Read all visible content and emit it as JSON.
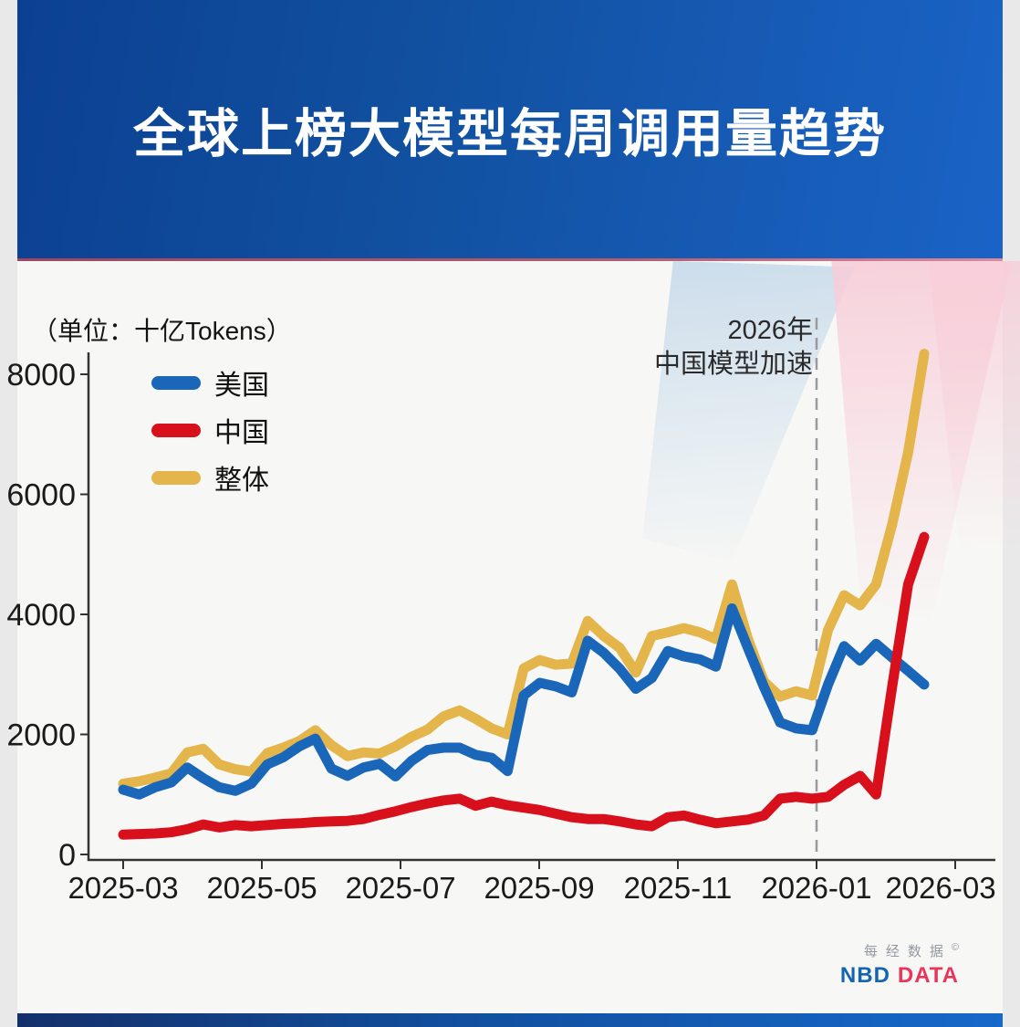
{
  "header": {
    "title": "全球上榜大模型每周调用量趋势"
  },
  "chart_data": {
    "type": "line",
    "title": "全球上榜大模型每周调用量趋势",
    "unit_label": "（单位：十亿Tokens）",
    "x_tick_labels": [
      "2025-03",
      "2025-05",
      "2025-07",
      "2025-09",
      "2025-11",
      "2026-01",
      "2026-03"
    ],
    "yticks": [
      0,
      2000,
      4000,
      6000,
      8000
    ],
    "ylim": [
      0,
      8500
    ],
    "grid": false,
    "legend_position": "top-left",
    "x_unit": "week",
    "points_per_series": 51,
    "series": [
      {
        "name": "美国",
        "key": "usa",
        "color": "#1a66b8",
        "z": 1,
        "values": [
          1080,
          1000,
          1120,
          1200,
          1450,
          1270,
          1120,
          1060,
          1180,
          1500,
          1620,
          1800,
          1930,
          1430,
          1310,
          1450,
          1510,
          1300,
          1560,
          1740,
          1780,
          1780,
          1660,
          1610,
          1390,
          2650,
          2860,
          2800,
          2700,
          3560,
          3360,
          3090,
          2760,
          2940,
          3390,
          3300,
          3250,
          3130,
          4100,
          3440,
          2790,
          2200,
          2100,
          2070,
          2830,
          3470,
          3230,
          3510,
          3280,
          3060,
          2830
        ]
      },
      {
        "name": "中国",
        "key": "china",
        "color": "#d8101c",
        "z": 2,
        "values": [
          330,
          340,
          350,
          370,
          420,
          500,
          450,
          490,
          470,
          490,
          510,
          520,
          540,
          550,
          560,
          590,
          660,
          720,
          790,
          850,
          900,
          930,
          810,
          880,
          820,
          780,
          740,
          680,
          620,
          590,
          590,
          550,
          500,
          470,
          620,
          650,
          580,
          520,
          550,
          580,
          650,
          930,
          960,
          930,
          960,
          1160,
          1310,
          1000,
          2800,
          4500,
          5290
        ]
      },
      {
        "name": "整体",
        "key": "total",
        "color": "#e3b54a",
        "z": 0,
        "values": [
          1180,
          1220,
          1280,
          1350,
          1700,
          1760,
          1500,
          1420,
          1380,
          1690,
          1780,
          1890,
          2070,
          1820,
          1640,
          1700,
          1680,
          1800,
          1960,
          2080,
          2300,
          2400,
          2260,
          2100,
          2000,
          3100,
          3240,
          3160,
          3180,
          3890,
          3640,
          3440,
          3030,
          3640,
          3700,
          3770,
          3700,
          3590,
          4500,
          3590,
          2880,
          2630,
          2720,
          2650,
          3740,
          4320,
          4150,
          4500,
          5500,
          6700,
          8340
        ]
      }
    ],
    "annotation": {
      "line1": "2026年",
      "line2": "中国模型加速",
      "dashed_line_at": "2026-01"
    }
  },
  "footer": {
    "logo_cn": "每经数据",
    "logo_mark": "©",
    "logo_en_blue": "NBD",
    "logo_en_red": "DATA"
  }
}
